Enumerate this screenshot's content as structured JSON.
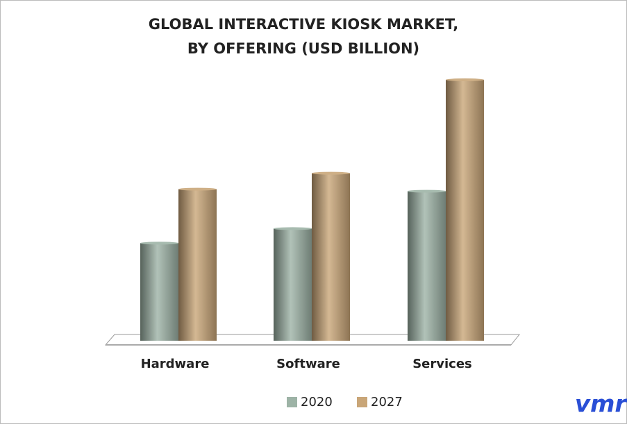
{
  "chart_data": {
    "type": "bar",
    "title": [
      "GLOBAL INTERACTIVE KIOSK MARKET,",
      "BY OFFERING (USD BILLION)"
    ],
    "categories": [
      "Hardware",
      "Software",
      "Services"
    ],
    "series": [
      {
        "name": "2020",
        "color": "#9db3a6",
        "values": [
          1.41,
          1.62,
          2.16
        ]
      },
      {
        "name": "2027",
        "color": "#c9a678",
        "values": [
          2.19,
          2.42,
          3.77
        ]
      }
    ],
    "logo": "vmr"
  }
}
